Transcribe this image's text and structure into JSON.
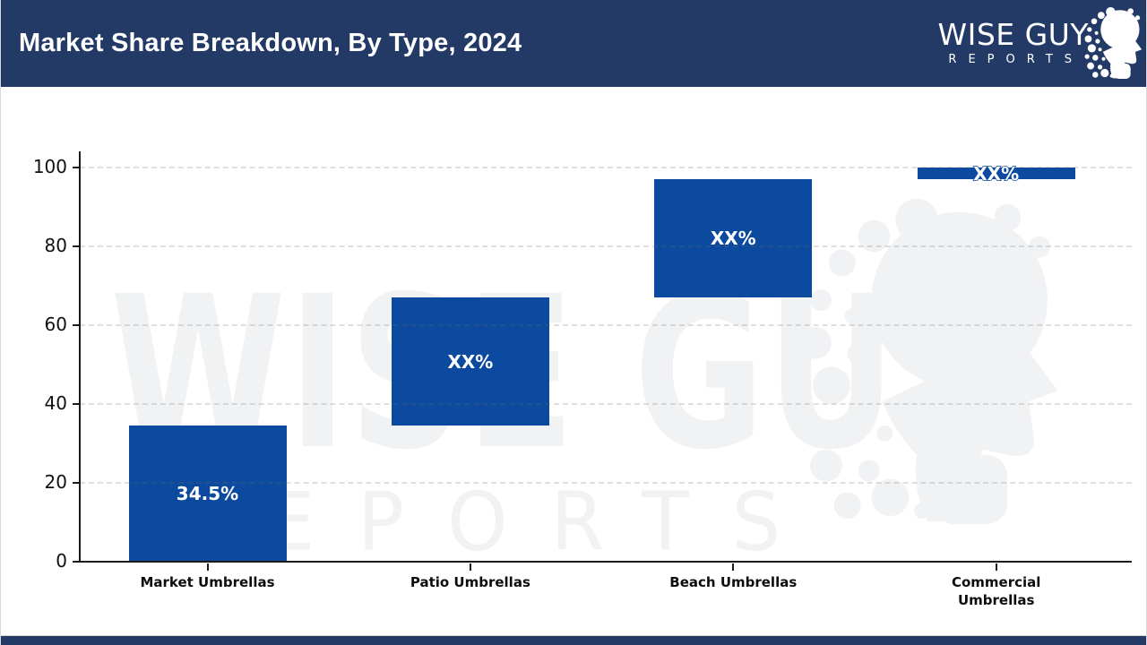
{
  "header": {
    "title": "Market Share Breakdown, By Type, 2024",
    "bg_color": "#233A66",
    "logo": {
      "line1": "WISE GUY",
      "line2": "REPORTS"
    }
  },
  "watermark": {
    "line1": "WISE GUY",
    "line2": "REPORTS"
  },
  "footer": {
    "bg_color": "#233A66"
  },
  "chart_data": {
    "type": "bar",
    "subtype": "floating-waterfall",
    "title": "Market Share Breakdown, By Type, 2024",
    "categories": [
      "Market Umbrellas",
      "Patio Umbrellas",
      "Beach Umbrellas",
      "Commercial Umbrellas"
    ],
    "series": [
      {
        "category": "Market Umbrellas",
        "start": 0,
        "end": 34.5,
        "label": "34.5%"
      },
      {
        "category": "Patio Umbrellas",
        "start": 34.5,
        "end": 67,
        "label": "XX%"
      },
      {
        "category": "Beach Umbrellas",
        "start": 67,
        "end": 97,
        "label": "XX%"
      },
      {
        "category": "Commercial Umbrellas",
        "start": 97,
        "end": 100,
        "label": "XX%"
      }
    ],
    "xlabel": "",
    "ylabel": "",
    "ylim": [
      0,
      100
    ],
    "yticks": [
      0,
      20,
      40,
      60,
      80,
      100
    ],
    "grid": {
      "axis": "y",
      "style": "dashed",
      "on": true
    },
    "legend": "none",
    "bar_color": "#0B4A9E"
  }
}
